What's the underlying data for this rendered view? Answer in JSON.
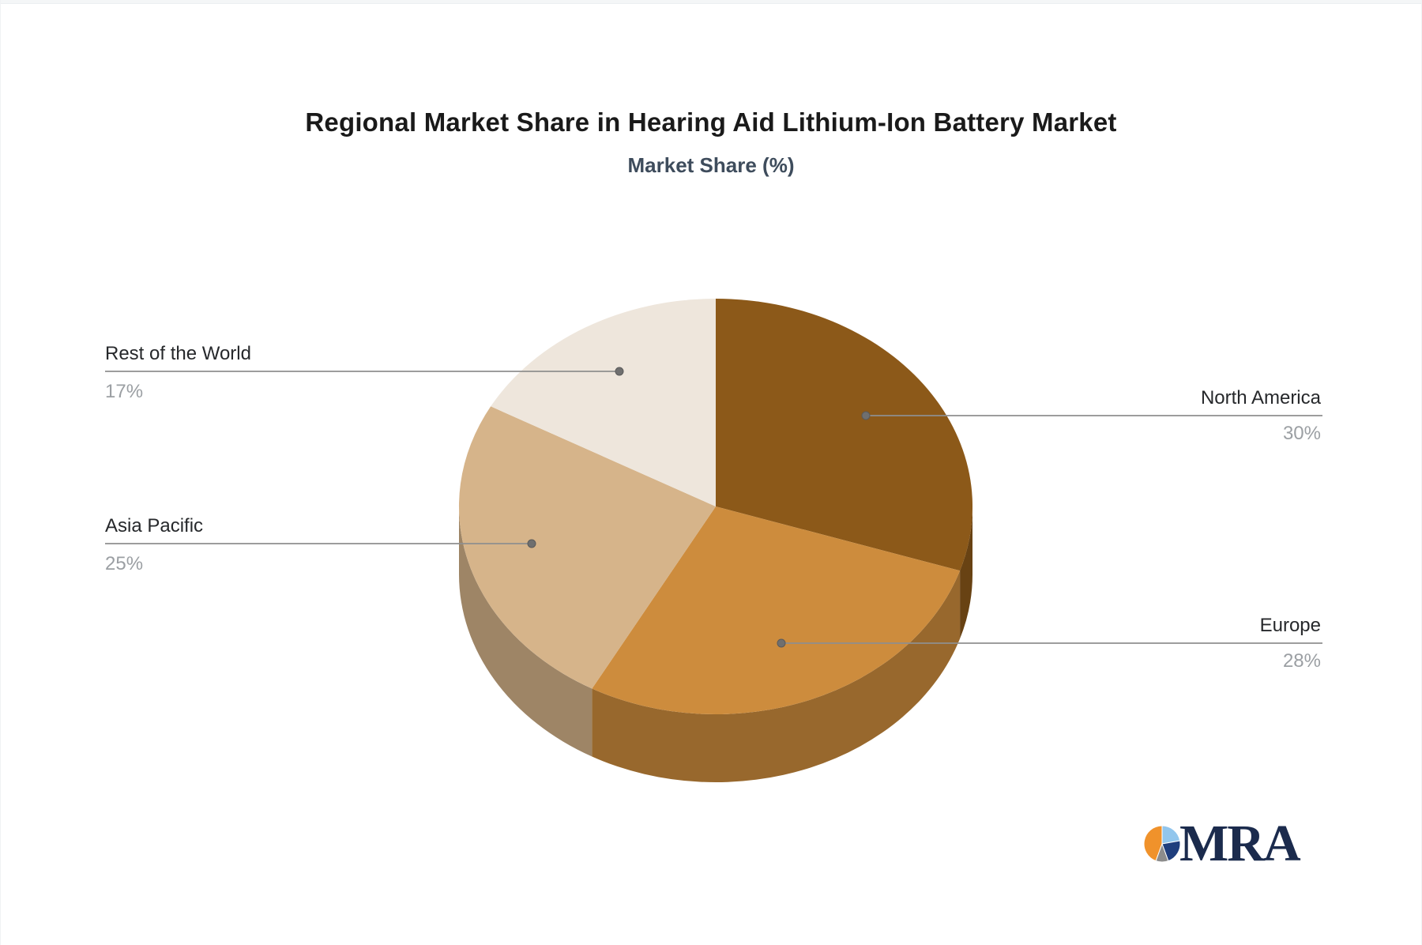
{
  "header": {
    "title": "Regional Market Share in Hearing Aid Lithium-Ion Battery Market",
    "subtitle": "Market Share (%)"
  },
  "chart_data": {
    "type": "pie",
    "style": "3d",
    "title": "Regional Market Share in Hearing Aid Lithium-Ion Battery Market",
    "subtitle": "Market Share (%)",
    "unit": "%",
    "start_angle_deg": 0,
    "direction": "clockwise",
    "legend_position": "callout-labels",
    "slices": [
      {
        "label": "North America",
        "value": 30,
        "display": "30%",
        "color": "#8C5919",
        "callout_side": "right"
      },
      {
        "label": "Europe",
        "value": 28,
        "display": "28%",
        "color": "#CD8C3D",
        "callout_side": "right"
      },
      {
        "label": "Asia Pacific",
        "value": 25,
        "display": "25%",
        "color": "#D6B48A",
        "callout_side": "left"
      },
      {
        "label": "Rest of the World",
        "value": 17,
        "display": "17%",
        "color": "#EEE6DC",
        "callout_side": "left"
      }
    ],
    "label_text_color": "#26282B",
    "value_text_color": "#9B9FA3",
    "connector_color": "#8F8F8F"
  },
  "logo": {
    "text": "MRA",
    "text_color": "#1B2B4D",
    "glyph_slices": [
      {
        "name": "orange",
        "from": 200,
        "to": 360,
        "color": "#F0922B"
      },
      {
        "name": "light-blue",
        "from": 0,
        "to": 80,
        "color": "#92C6ED"
      },
      {
        "name": "navy",
        "from": 80,
        "to": 160,
        "color": "#1F3E7D"
      },
      {
        "name": "gray",
        "from": 160,
        "to": 200,
        "color": "#8C8C8C"
      }
    ]
  }
}
